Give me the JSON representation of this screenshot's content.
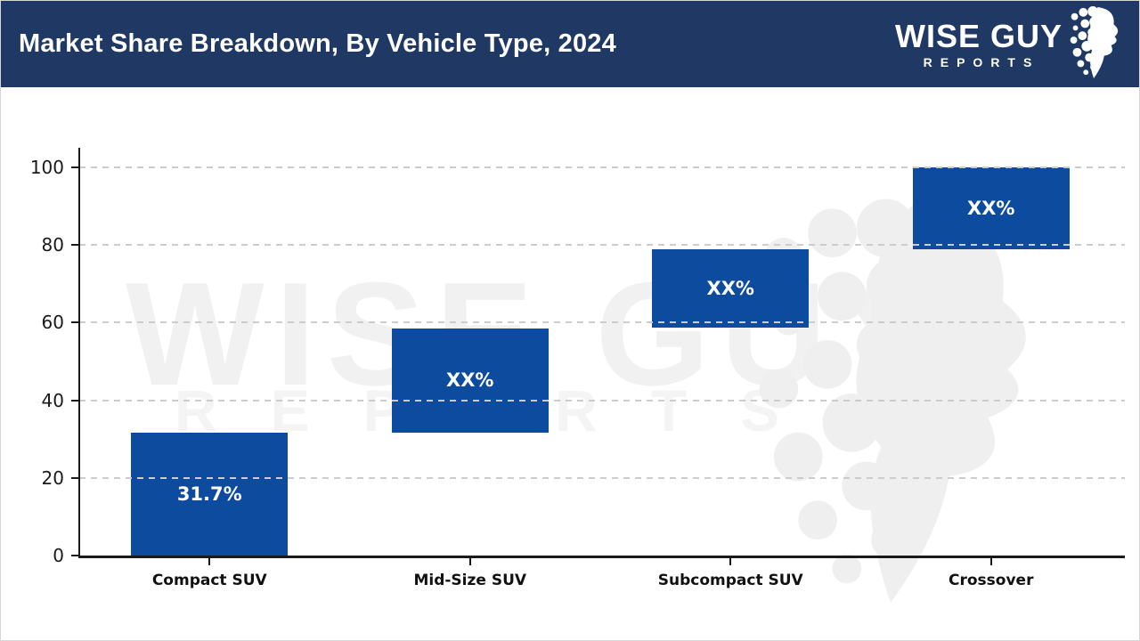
{
  "header": {
    "title": "Market Share Breakdown, By Vehicle Type, 2024",
    "bg_color": "#1f3864",
    "logo": {
      "primary": "WISE GUY",
      "secondary": "REPORTS"
    }
  },
  "watermark": {
    "primary": "WISE GUY",
    "secondary": "REPORTS"
  },
  "chart_data": {
    "type": "bar",
    "subtype": "waterfall-floating-bars",
    "title": "Market Share Breakdown, By Vehicle Type, 2024",
    "categories": [
      "Compact SUV",
      "Mid-Size SUV",
      "Subcompact SUV",
      "Crossover"
    ],
    "bars": [
      {
        "category": "Compact SUV",
        "start": 0,
        "end": 31.7,
        "label": "31.7%"
      },
      {
        "category": "Mid-Size SUV",
        "start": 31.7,
        "end": 58.6,
        "label": "XX%"
      },
      {
        "category": "Subcompact SUV",
        "start": 58.6,
        "end": 78.9,
        "label": "XX%"
      },
      {
        "category": "Crossover",
        "start": 78.9,
        "end": 100,
        "label": "XX%"
      }
    ],
    "xlabel": "",
    "ylabel": "",
    "ylim": [
      0,
      100
    ],
    "yticks": [
      0,
      20,
      40,
      60,
      80,
      100
    ],
    "grid": "horizontal dashed, drawn over bars",
    "legend": "none",
    "bar_color": "#0d4b9e",
    "bar_label_color": "#ffffff",
    "axis_color": "#1a1a1a",
    "gridline_color": "#cccccc"
  }
}
